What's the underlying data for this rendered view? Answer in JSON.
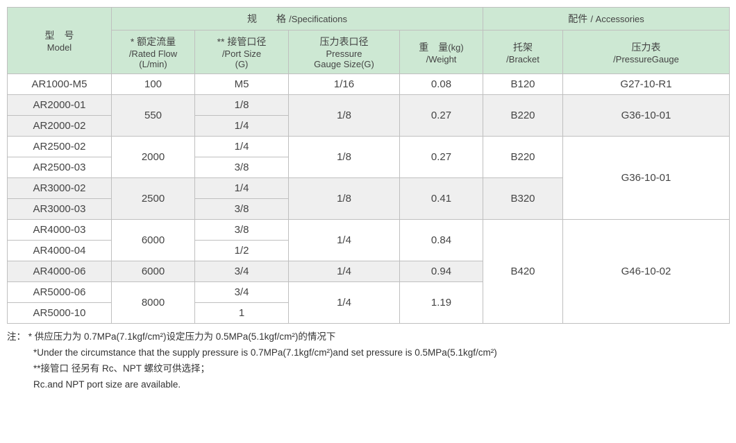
{
  "colors": {
    "header_bg": "#cde8d3",
    "shade_bg": "#efefef",
    "border": "#bfbfbf",
    "text": "#444444",
    "page_bg": "#ffffff"
  },
  "header": {
    "model_cn": "型　号",
    "model_en": "Model",
    "spec_cn": "规　　格",
    "spec_en": "/Specifications",
    "acc_cn": "配件",
    "acc_en": "/ Accessories",
    "flow_star": "* 额定流量",
    "flow_en": "/Rated Flow",
    "flow_unit": "(L/min)",
    "port_star": "** 接管口径",
    "port_en": "/Port Size",
    "port_unit": "(G)",
    "gauge_cn": "压力表口径",
    "gauge_en1": "Pressure",
    "gauge_en2": "Gauge Size(G)",
    "weight_cn": "重　量",
    "weight_unit": "(kg)",
    "weight_en": "/Weight",
    "bracket_cn": "托架",
    "bracket_en": "/Bracket",
    "prgauge_cn": "压力表",
    "prgauge_en": "/PressureGauge"
  },
  "rows": {
    "r1": {
      "model": "AR1000-M5",
      "flow": "100",
      "port": "M5",
      "gauge": "1/16",
      "weight": "0.08",
      "bracket": "B120",
      "prg": "G27-10-R1"
    },
    "r2": {
      "model": "AR2000-01",
      "flow": "550",
      "port": "1/8",
      "gauge": "1/8",
      "weight": "0.27",
      "bracket": "B220",
      "prg": "G36-10-01"
    },
    "r3": {
      "model": "AR2000-02",
      "port": "1/4"
    },
    "r4": {
      "model": "AR2500-02",
      "flow": "2000",
      "port": "1/4",
      "gauge": "1/8",
      "weight": "0.27",
      "bracket": "B220",
      "prg": "G36-10-01"
    },
    "r5": {
      "model": "AR2500-03",
      "port": "3/8"
    },
    "r6": {
      "model": "AR3000-02",
      "flow": "2500",
      "port": "1/4",
      "gauge": "1/8",
      "weight": "0.41",
      "bracket": "B320"
    },
    "r7": {
      "model": "AR3000-03",
      "port": "3/8"
    },
    "r8": {
      "model": "AR4000-03",
      "flow": "6000",
      "port": "3/8",
      "gauge": "1/4",
      "weight": "0.84",
      "bracket": "B420",
      "prg": "G46-10-02"
    },
    "r9": {
      "model": "AR4000-04",
      "port": "1/2"
    },
    "r10": {
      "model": "AR4000-06",
      "flow": "6000",
      "port": "3/4",
      "gauge": "1/4",
      "weight": "0.94"
    },
    "r11": {
      "model": "AR5000-06",
      "flow": "8000",
      "port": "3/4",
      "gauge": "1/4",
      "weight": "1.19"
    },
    "r12": {
      "model": "AR5000-10",
      "port": "1"
    }
  },
  "notes": {
    "n1": "注： * 供应压力为 0.7MPa(7.1kgf/cm²)设定压力为 0.5MPa(5.1kgf/cm²)的情况下",
    "n2": "*Under the circumstance that the supply pressure is 0.7MPa(7.1kgf/cm²)and set pressure is 0.5MPa(5.1kgf/cm²)",
    "n3": "**接管口 径另有 Rc、NPT 螺纹可供选择；",
    "n4": "Rc.and NPT port size are available."
  }
}
